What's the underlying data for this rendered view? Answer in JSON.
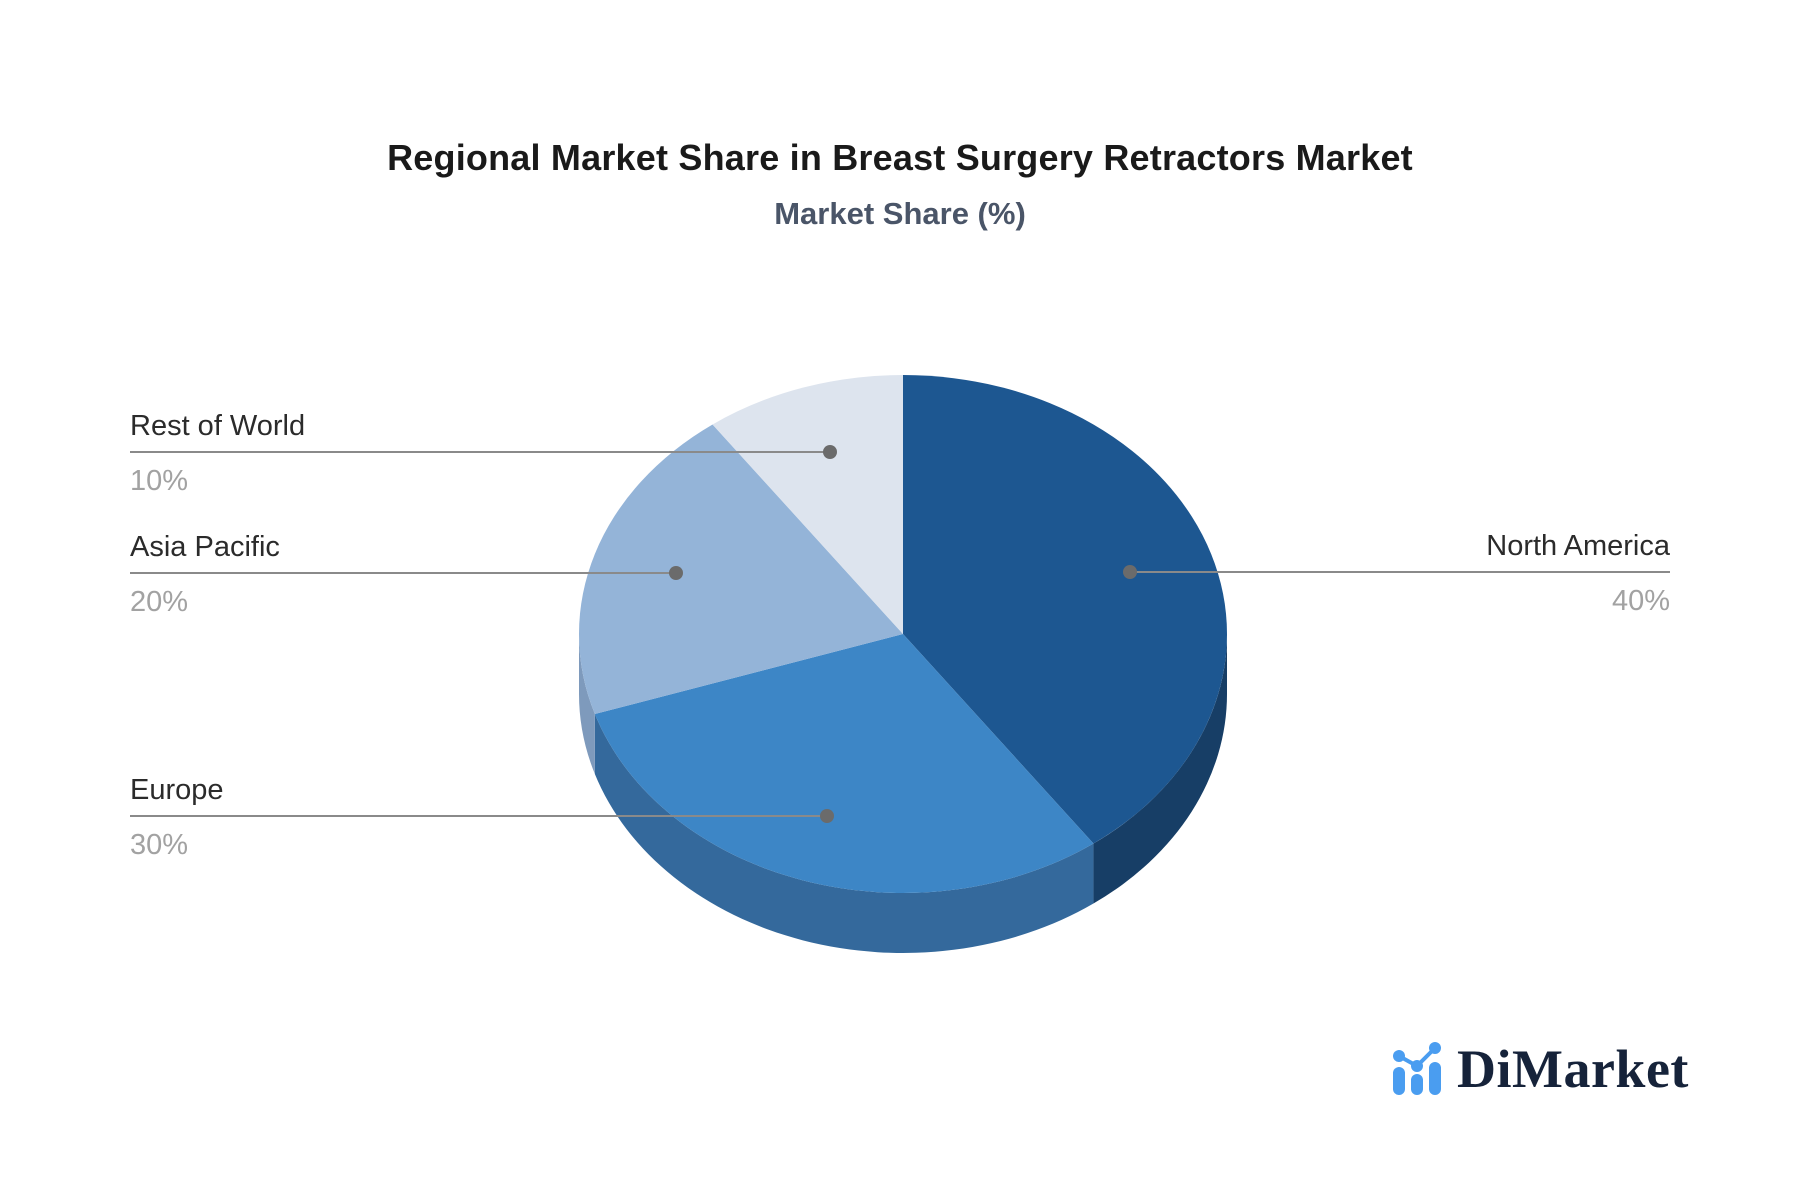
{
  "title": "Regional Market Share in Breast Surgery Retractors Market",
  "subtitle": "Market Share (%)",
  "chart_data": {
    "type": "pie",
    "title": "Regional Market Share in Breast Surgery Retractors Market",
    "subtitle": "Market Share (%)",
    "effect": "3d",
    "start_angle_deg": 0,
    "direction": "clockwise",
    "legend_position": "leader-line-labels",
    "slices": [
      {
        "label": "North America",
        "value": 40,
        "display": "40%",
        "color": "#1d5791",
        "side_color": "#173e66"
      },
      {
        "label": "Europe",
        "value": 30,
        "display": "30%",
        "color": "#3d86c6",
        "side_color": "#34699c"
      },
      {
        "label": "Asia Pacific",
        "value": 20,
        "display": "20%",
        "color": "#94b4d8",
        "side_color": "#7e9abc"
      },
      {
        "label": "Rest of World",
        "value": 10,
        "display": "10%",
        "color": "#dde4ee",
        "side_color": "#c3cfdf"
      }
    ]
  },
  "logo": {
    "text": "DiMarket",
    "icon": "bar-chart-logo-icon",
    "accent_color": "#4a9df0",
    "text_color": "#16233a"
  },
  "colors": {
    "leader_line": "#8a8a8a",
    "leader_dot": "#6b6b6b",
    "label_text": "#2b2b2b",
    "pct_text": "#a2a2a2",
    "title_text": "#1a1a1a",
    "subtitle_text": "#4a5568"
  }
}
